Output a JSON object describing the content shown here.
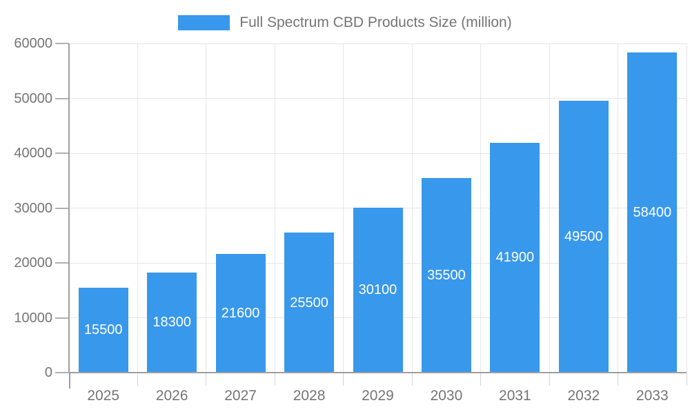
{
  "legend": {
    "label": "Full Spectrum CBD Products Size (million)"
  },
  "chart_data": {
    "type": "bar",
    "title": "",
    "xlabel": "",
    "ylabel": "",
    "categories": [
      "2025",
      "2026",
      "2027",
      "2028",
      "2029",
      "2030",
      "2031",
      "2032",
      "2033"
    ],
    "values": [
      15500,
      18300,
      21600,
      25500,
      30100,
      35500,
      41900,
      49500,
      58400
    ],
    "series_name": "Full Spectrum CBD Products Size (million)",
    "value_labels": [
      "15500",
      "18300",
      "21600",
      "25500",
      "30100",
      "35500",
      "41900",
      "49500",
      "58400"
    ],
    "ylim": [
      0,
      60000
    ],
    "ytick_step": 10000,
    "ytick_labels": [
      "0",
      "10000",
      "20000",
      "30000",
      "40000",
      "50000",
      "60000"
    ],
    "grid": true,
    "legend_position": "top",
    "colors": {
      "bar": "#3898EB",
      "value_label": "#ffffff",
      "axis": "#9e9e9e",
      "gridline": "#e6e6e6",
      "tick_label": "#757575"
    }
  }
}
